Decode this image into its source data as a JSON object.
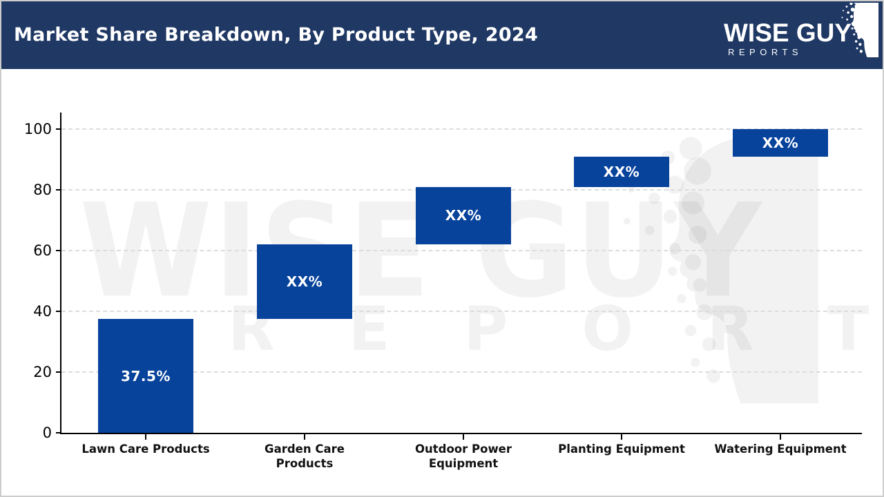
{
  "header": {
    "title": "Market Share Breakdown, By Product Type, 2024",
    "logo": {
      "line1": "WISE GUY",
      "line2": "R E P O R T S"
    }
  },
  "watermark": {
    "line1": "WISE GUY",
    "line2": "R E P O R T S"
  },
  "colors": {
    "header_bg": "#1f3864",
    "bar": "#07429b",
    "grid": "#dcdcdc",
    "axis": "#000000",
    "bar_label": "#ffffff",
    "border": "#cccccc"
  },
  "chart_data": {
    "type": "bar",
    "subtype": "waterfall",
    "title": "Market Share Breakdown, By Product Type, 2024",
    "xlabel": "",
    "ylabel": "",
    "ylim": [
      0,
      100
    ],
    "yticks": [
      0,
      20,
      40,
      60,
      80,
      100
    ],
    "grid": "horizontal-dashed",
    "legend": "none",
    "categories": [
      "Lawn Care Products",
      "Garden Care Products",
      "Outdoor Power Equipment",
      "Planting Equipment",
      "Watering Equipment"
    ],
    "category_lines": [
      [
        "Lawn Care Products"
      ],
      [
        "Garden Care",
        "Products"
      ],
      [
        "Outdoor Power",
        "Equipment"
      ],
      [
        "Planting Equipment"
      ],
      [
        "Watering Equipment"
      ]
    ],
    "segments": [
      {
        "start": 0,
        "end": 37.5,
        "value": 37.5,
        "label": "37.5%"
      },
      {
        "start": 37.5,
        "end": 62,
        "value": 24.5,
        "label": "XX%"
      },
      {
        "start": 62,
        "end": 81,
        "value": 19,
        "label": "XX%"
      },
      {
        "start": 81,
        "end": 91,
        "value": 10,
        "label": "XX%"
      },
      {
        "start": 91,
        "end": 100,
        "value": 9,
        "label": "XX%"
      }
    ]
  }
}
